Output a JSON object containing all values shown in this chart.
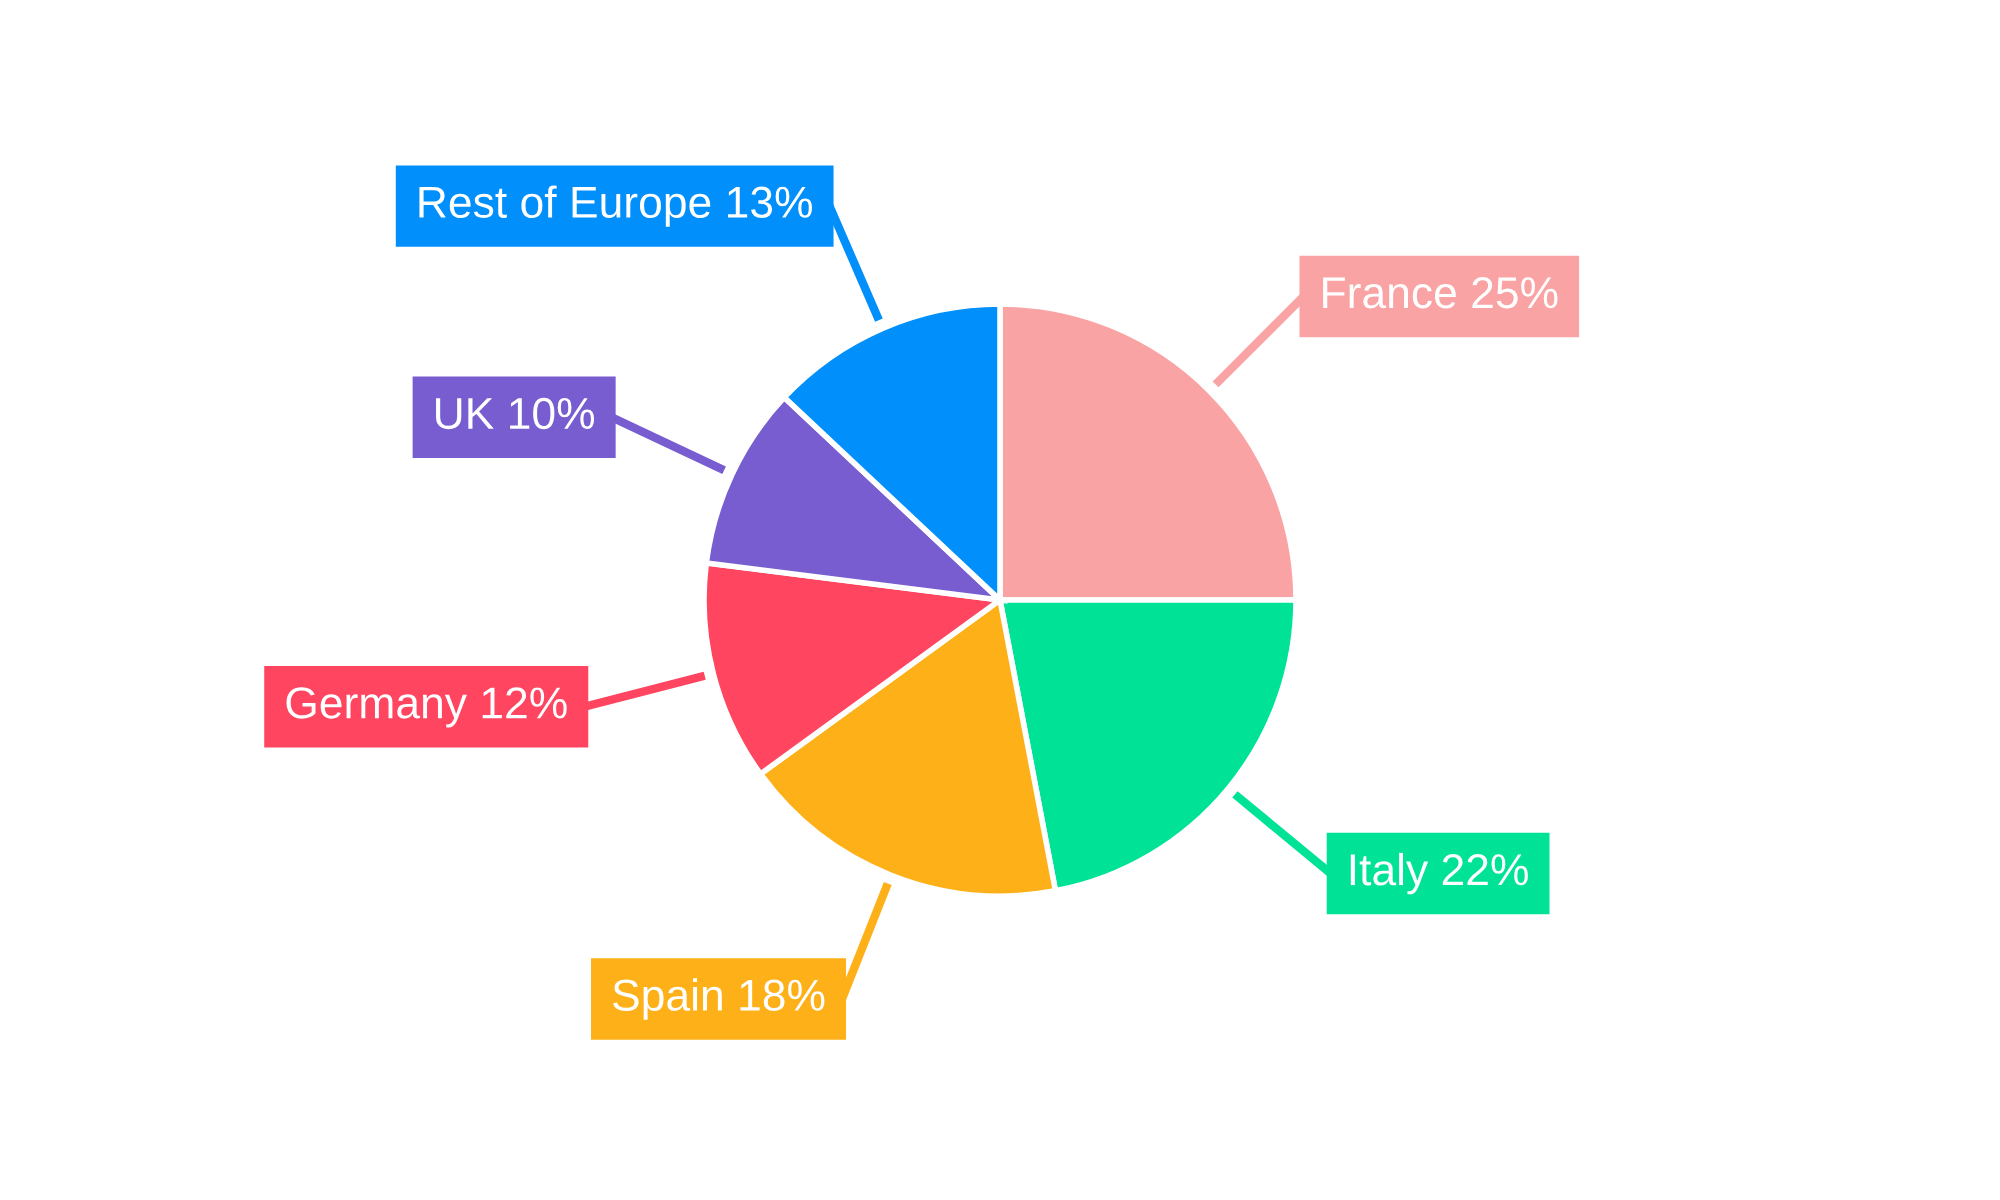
{
  "chart_data": {
    "type": "pie",
    "categories": [
      "France",
      "Italy",
      "Spain",
      "Germany",
      "UK",
      "Rest of Europe"
    ],
    "values": [
      25,
      22,
      18,
      12,
      10,
      13
    ],
    "value_labels": [
      "25%",
      "22%",
      "18%",
      "12%",
      "10%",
      "13%"
    ],
    "colors": [
      "#f9a3a4",
      "#00e396",
      "#feb019",
      "#ff4560",
      "#775dd0",
      "#008ffb"
    ]
  }
}
